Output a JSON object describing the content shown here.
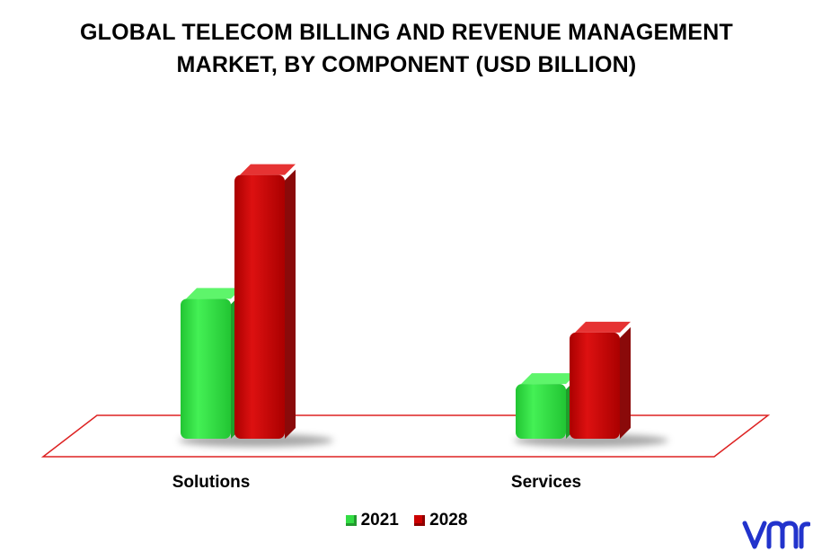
{
  "chart_data": {
    "type": "bar",
    "title_lines": [
      "GLOBAL TELECOM BILLING AND REVENUE MANAGEMENT",
      "MARKET, BY COMPONENT (USD BILLION)"
    ],
    "categories": [
      "Solutions",
      "Services"
    ],
    "series": [
      {
        "name": "2021",
        "values": [
          8.7,
          3.4
        ],
        "color": "#33dd44"
      },
      {
        "name": "2028",
        "values": [
          16.4,
          6.6
        ],
        "color": "#cc0000"
      }
    ],
    "ylim": [
      0,
      18
    ],
    "grid": false,
    "legend_position": "bottom-center",
    "floor_color": "#dd2222"
  },
  "brand": {
    "logo": "vmr-logo",
    "color": "#2233cc"
  }
}
